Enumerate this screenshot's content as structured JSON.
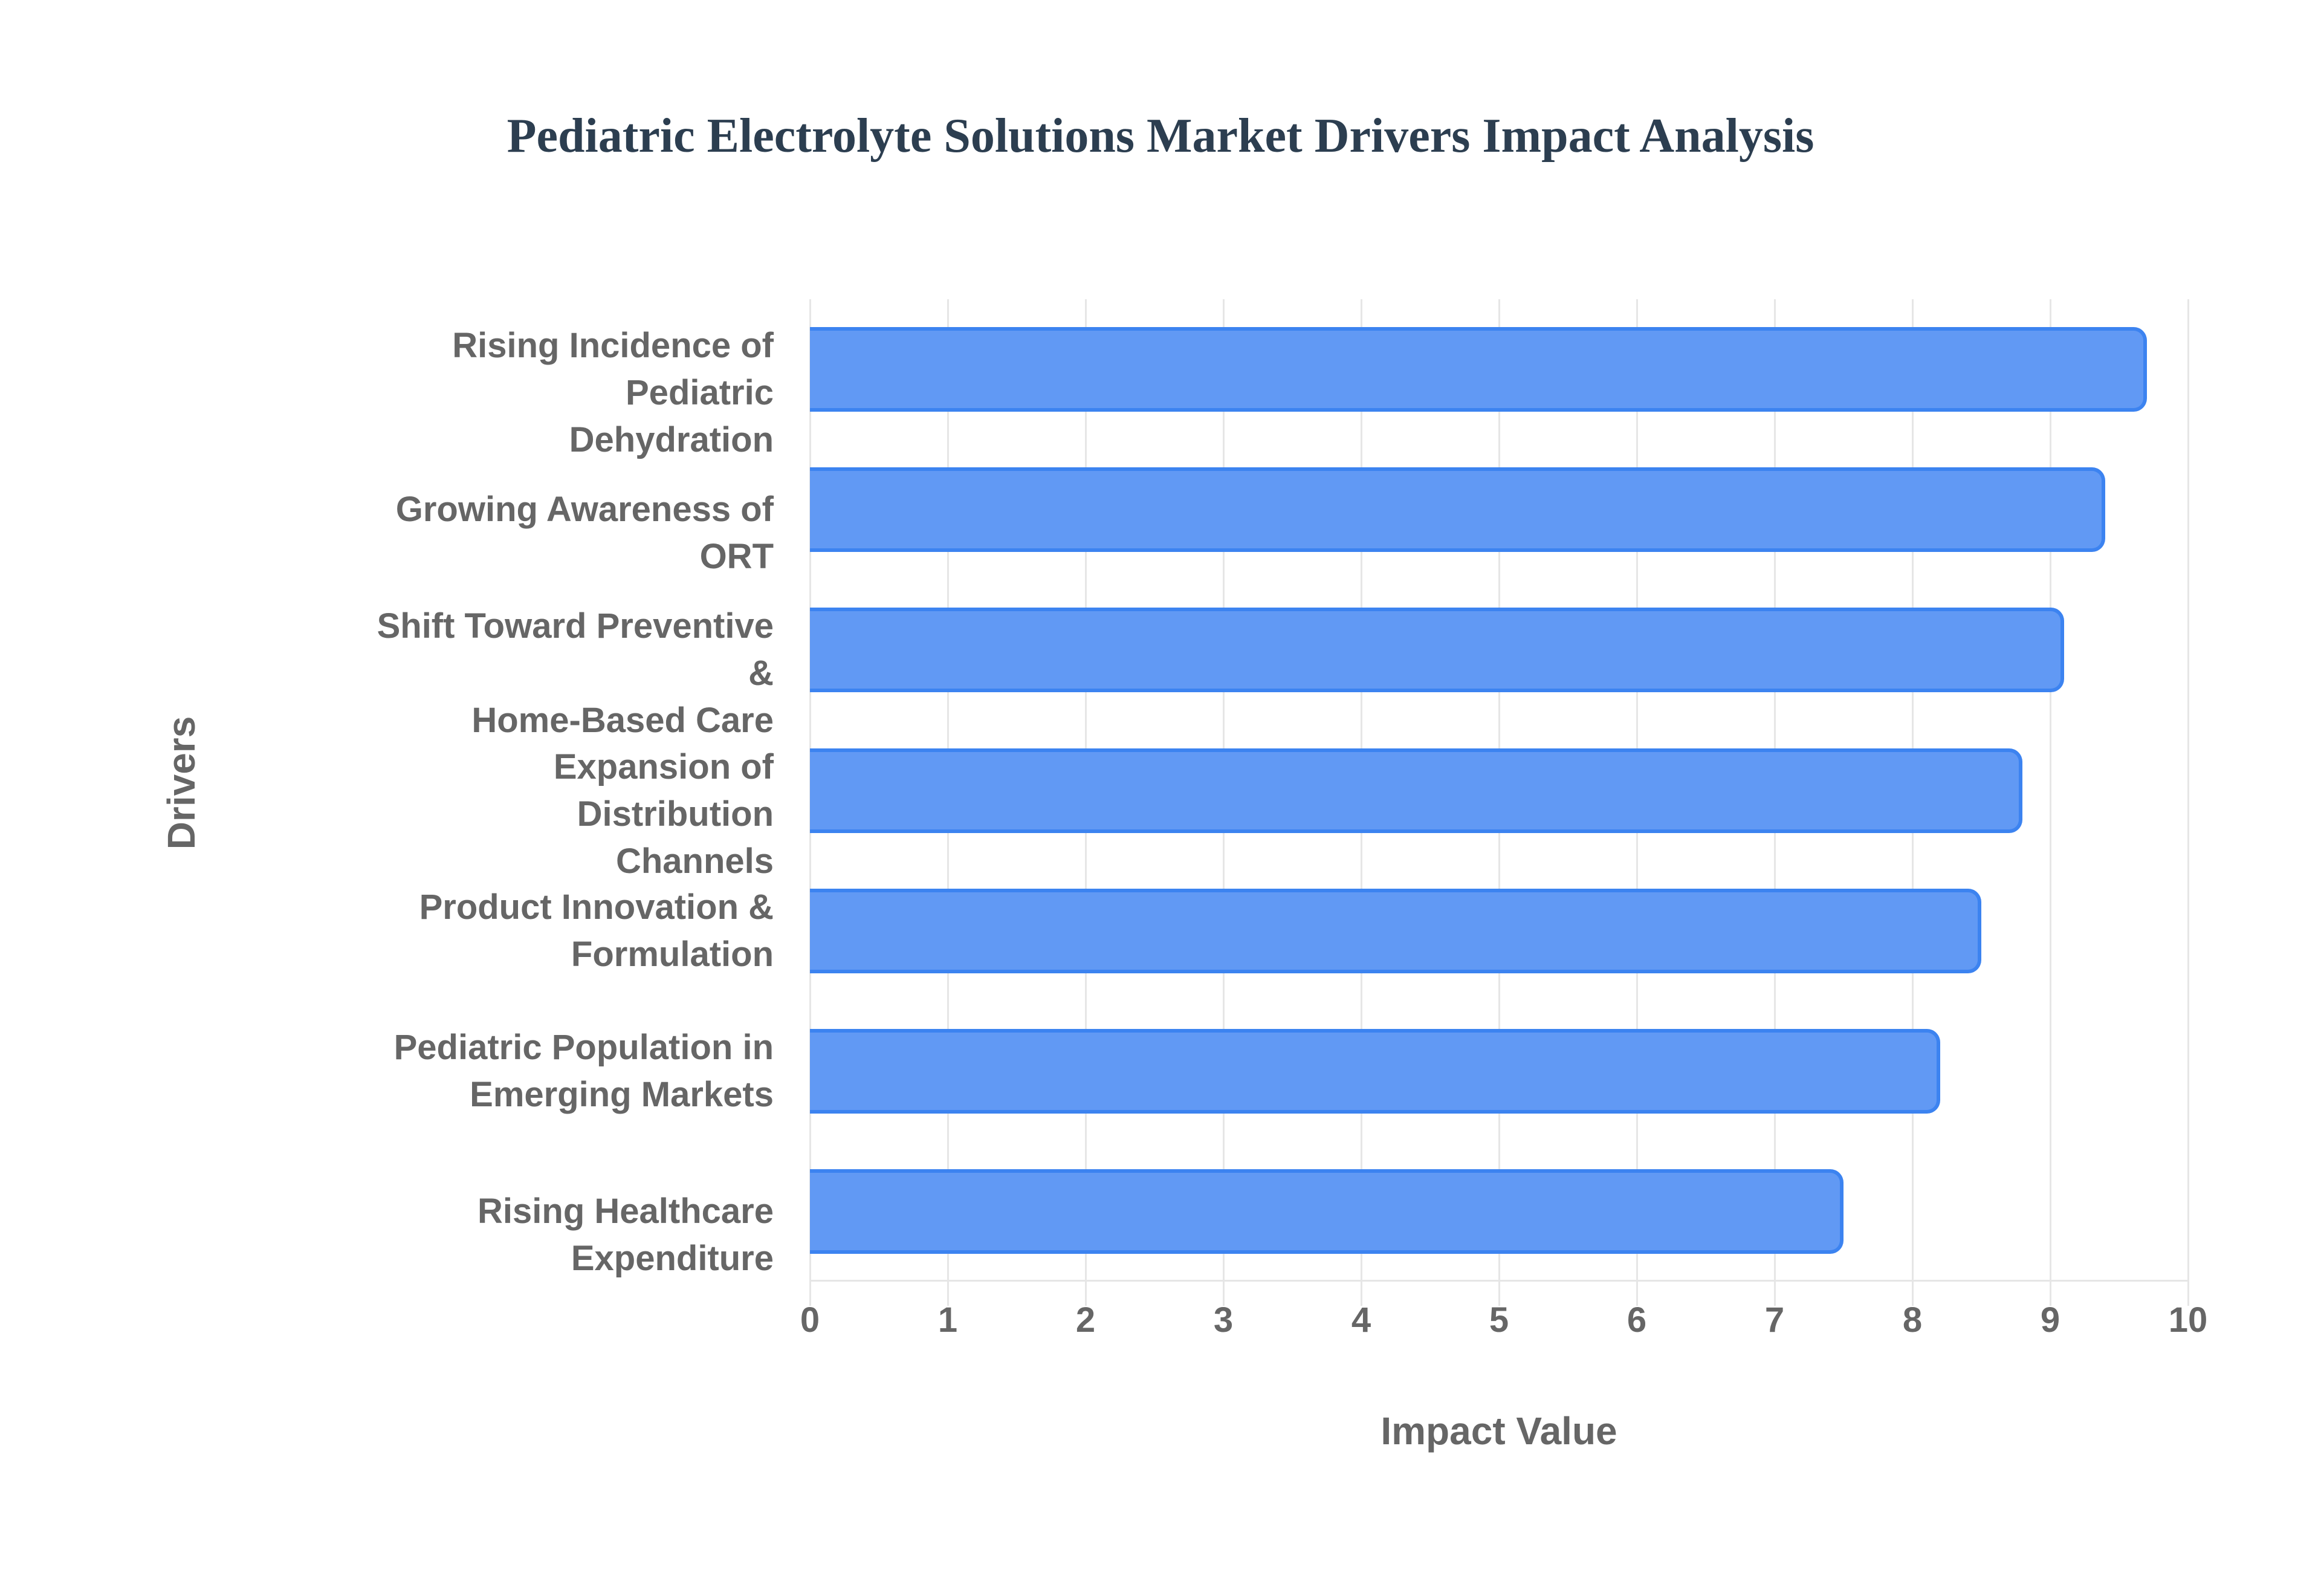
{
  "chart_data": {
    "type": "bar",
    "orientation": "horizontal",
    "title": "Pediatric Electrolyte Solutions Market Drivers Impact Analysis",
    "xlabel": "Impact Value",
    "ylabel": "Drivers",
    "xlim": [
      0,
      10
    ],
    "xticks": [
      "0",
      "1",
      "2",
      "3",
      "4",
      "5",
      "6",
      "7",
      "8",
      "9",
      "10"
    ],
    "grid": true,
    "legend": "none",
    "bar_color": "#6199f4",
    "bar_border_color": "#3c83f0",
    "categories": [
      "Rising Incidence of Pediatric Dehydration",
      "Growing Awareness of ORT",
      "Shift Toward Preventive & Home-Based Care",
      "Expansion of Distribution Channels",
      "Product Innovation & Formulation",
      "Pediatric Population in Emerging Markets",
      "Rising Healthcare Expenditure"
    ],
    "category_lines": [
      [
        "Rising Incidence of Pediatric",
        "Dehydration"
      ],
      [
        "Growing Awareness of ORT"
      ],
      [
        "Shift Toward Preventive &",
        "Home-Based Care"
      ],
      [
        "Expansion of Distribution",
        "Channels"
      ],
      [
        "Product Innovation &",
        "Formulation"
      ],
      [
        "Pediatric Population in",
        "Emerging Markets"
      ],
      [
        "Rising Healthcare Expenditure"
      ]
    ],
    "values": [
      9.7,
      9.4,
      9.1,
      8.8,
      8.5,
      8.2,
      7.5
    ]
  }
}
